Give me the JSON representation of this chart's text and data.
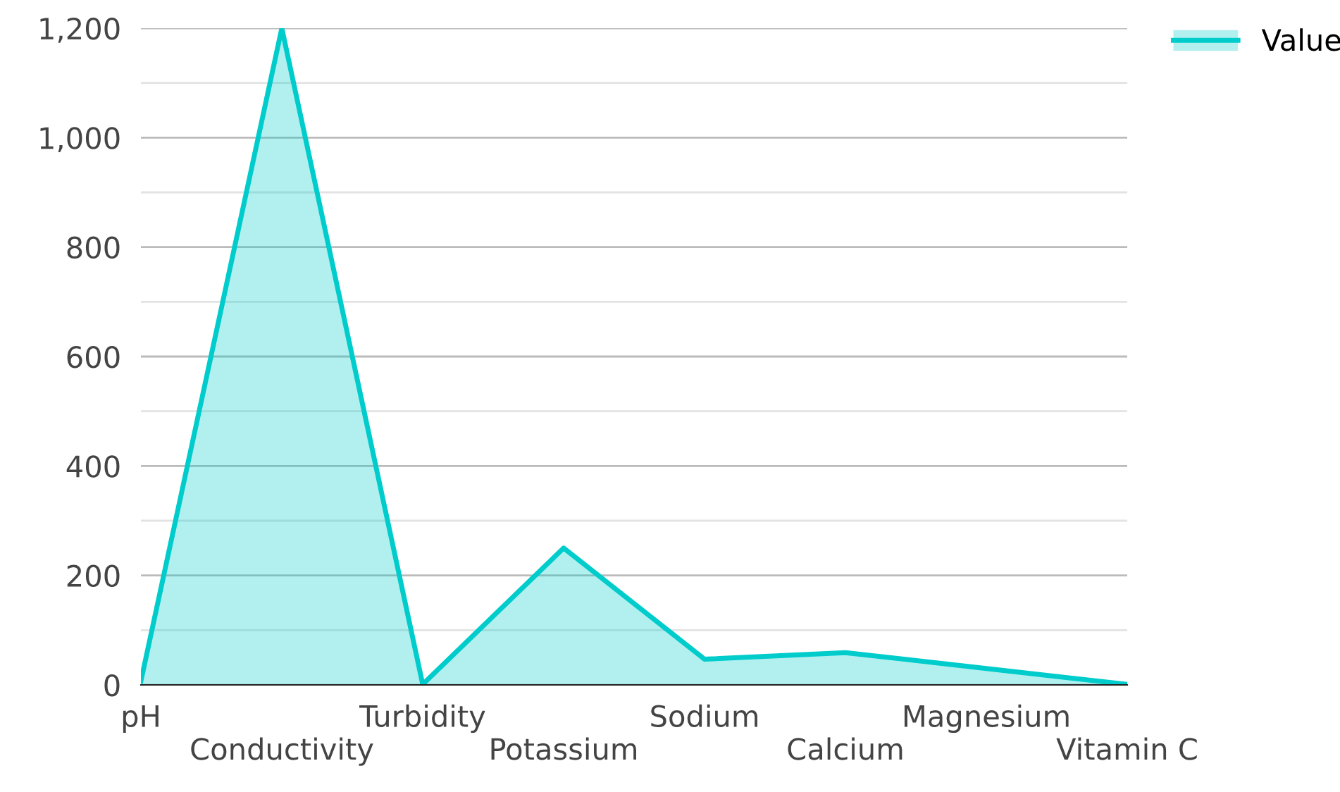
{
  "chart_data": {
    "type": "area",
    "categories": [
      "pH",
      "Conductivity",
      "Turbidity",
      "Potassium",
      "Sodium",
      "Calcium",
      "Magnesium",
      "Vitamin C"
    ],
    "series": [
      {
        "name": "Value",
        "color": "#00cccc",
        "values": [
          7,
          1200,
          1,
          250,
          47,
          59,
          30,
          1
        ]
      }
    ],
    "ylim": [
      0,
      1200
    ],
    "yticks": [
      0,
      {
        "value": 100,
        "label": null
      },
      200,
      {
        "value": 300,
        "label": null
      },
      400,
      {
        "value": 500,
        "label": null
      },
      600,
      {
        "value": 700,
        "label": null
      },
      800,
      {
        "value": 900,
        "label": null
      },
      {
        "value": 1000,
        "label": "1,000"
      },
      {
        "value": 1100,
        "label": null
      },
      {
        "value": 1200,
        "label": "1,200"
      }
    ],
    "grid": "y",
    "legend": "top right"
  }
}
